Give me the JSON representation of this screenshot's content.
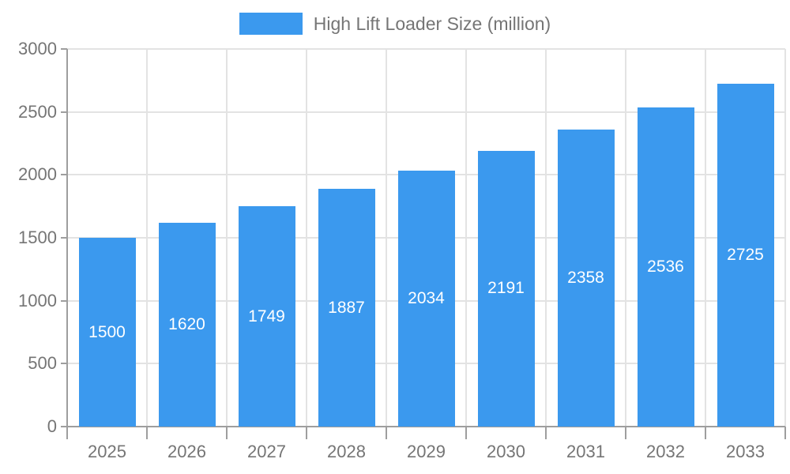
{
  "chart_data": {
    "type": "bar",
    "title": "",
    "legend": {
      "label": "High Lift Loader Size (million)",
      "position": "top"
    },
    "categories": [
      "2025",
      "2026",
      "2027",
      "2028",
      "2029",
      "2030",
      "2031",
      "2032",
      "2033"
    ],
    "values": [
      1500,
      1620,
      1749,
      1887,
      2034,
      2191,
      2358,
      2536,
      2725
    ],
    "xlabel": "",
    "ylabel": "",
    "ylim": [
      0,
      3000
    ],
    "yticks": [
      0,
      500,
      1000,
      1500,
      2000,
      2500,
      3000
    ],
    "grid": true,
    "bar_color": "#3b99ee",
    "bar_label_color": "#ffffff",
    "axis_color": "#9e9e9e",
    "grid_color": "#e3e3e3",
    "tick_label_color": "#757575",
    "background_color": "#ffffff"
  }
}
